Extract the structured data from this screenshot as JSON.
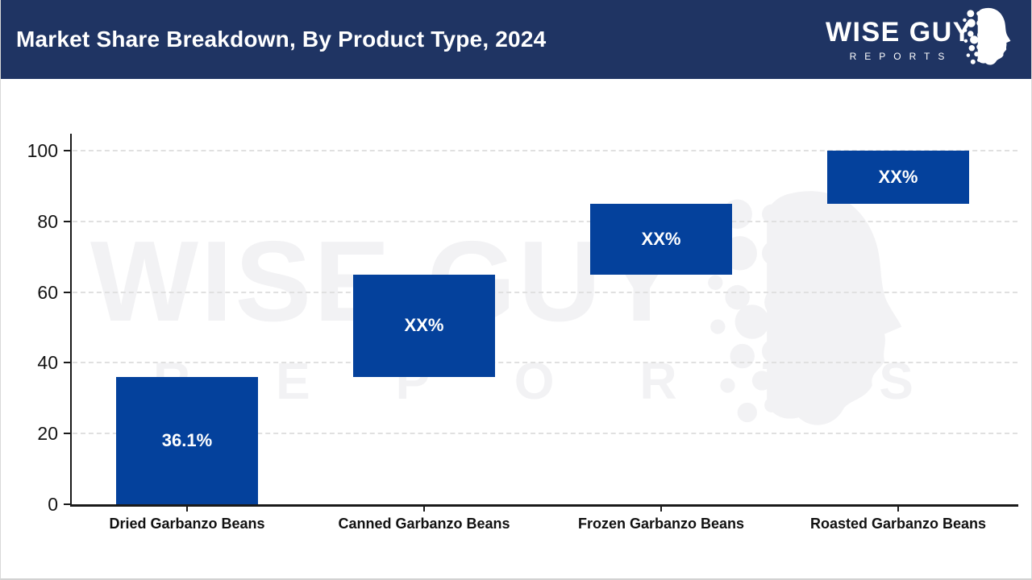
{
  "header": {
    "title": "Market Share Breakdown, By Product Type, 2024",
    "background_color": "#1f3463",
    "logo": {
      "line1": "WISE GUY",
      "line2": "REPORTS",
      "icon": "face-profile-dots-icon"
    }
  },
  "watermark": {
    "line1": "WISE GUY",
    "line2": "R E P O R T S",
    "icon": "face-profile-dots-watermark-icon",
    "color": "#f2f2f4"
  },
  "chart_data": {
    "type": "bar",
    "subtype": "waterfall",
    "title": "Market Share Breakdown, By Product Type, 2024",
    "categories": [
      "Dried Garbanzo Beans",
      "Canned Garbanzo Beans",
      "Frozen Garbanzo Beans",
      "Roasted Garbanzo Beans"
    ],
    "segments": [
      {
        "category": "Dried Garbanzo Beans",
        "start": 0,
        "end": 36.1,
        "label": "36.1%"
      },
      {
        "category": "Canned Garbanzo Beans",
        "start": 36.1,
        "end": 65,
        "label": "XX%"
      },
      {
        "category": "Frozen Garbanzo Beans",
        "start": 65,
        "end": 85,
        "label": "XX%"
      },
      {
        "category": "Roasted Garbanzo Beans",
        "start": 85,
        "end": 100,
        "label": "XX%"
      }
    ],
    "xlabel": "",
    "ylabel": "",
    "ylim": [
      0,
      100
    ],
    "yticks": [
      0,
      20,
      40,
      60,
      80,
      100
    ],
    "grid": "horizontal dashed",
    "legend": "none",
    "bar_color": "#04419c",
    "bar_label_color": "#ffffff"
  }
}
